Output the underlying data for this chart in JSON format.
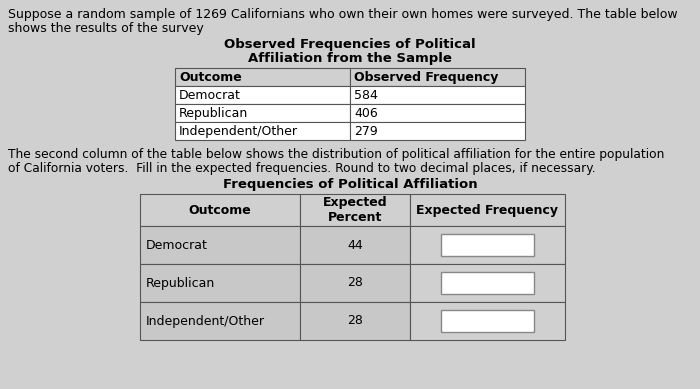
{
  "background_color": "#d0d0d0",
  "intro_text_line1": "Suppose a random sample of 1269 Californians who own their own homes were surveyed. The table below",
  "intro_text_line2": "shows the results of the survey",
  "table1_title_line1": "Observed Frequencies of Political",
  "table1_title_line2": "Affiliation from the Sample",
  "table1_headers": [
    "Outcome",
    "Observed Frequency"
  ],
  "table1_rows": [
    [
      "Democrat",
      "584"
    ],
    [
      "Republican",
      "406"
    ],
    [
      "Independent/Other",
      "279"
    ]
  ],
  "middle_text_line1": "The second column of the table below shows the distribution of political affiliation for the entire population",
  "middle_text_line2": "of California voters.  Fill in the expected frequencies. Round to two decimal places, if necessary.",
  "table2_title": "Frequencies of Political Affiliation",
  "table2_headers": [
    "Outcome",
    "Expected\nPercent",
    "Expected Frequency"
  ],
  "table2_rows": [
    [
      "Democrat",
      "44",
      ""
    ],
    [
      "Republican",
      "28",
      ""
    ],
    [
      "Independent/Other",
      "28",
      ""
    ]
  ],
  "font_size_intro": 9.0,
  "font_size_title": 9.5,
  "font_size_table": 9.0,
  "font_size_middle": 8.8
}
